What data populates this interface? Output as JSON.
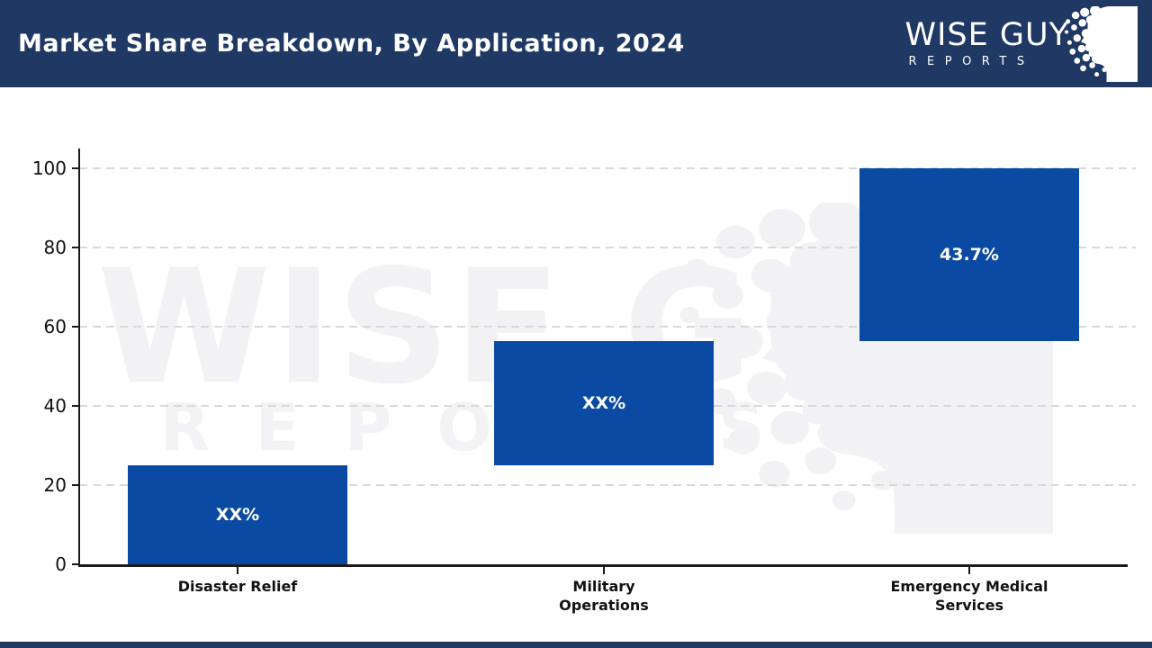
{
  "header": {
    "title": "Market Share Breakdown, By Application, 2024",
    "background_color": "#1f3864",
    "logo": {
      "name": "WISE GUY",
      "sub": "REPORTS",
      "face_icon": "dotted-head-profile-icon",
      "color": "#ffffff"
    }
  },
  "watermark": {
    "line1": "WISE GUY",
    "line2": "REPORTS",
    "color": "#f2f2f4"
  },
  "chart_data": {
    "type": "bar",
    "subtype": "waterfall",
    "title": "Market Share Breakdown, By Application, 2024",
    "xlabel": "",
    "ylabel": "",
    "categories": [
      "Disaster Relief",
      "Military Operations",
      "Emergency Medical Services"
    ],
    "category_display_lines": [
      [
        "Disaster Relief"
      ],
      [
        "Military",
        "Operations"
      ],
      [
        "Emergency Medical",
        "Services"
      ]
    ],
    "segments": [
      {
        "from": 0,
        "to": 25,
        "value_label": "XX%"
      },
      {
        "from": 25,
        "to": 56.3,
        "value_label": "XX%"
      },
      {
        "from": 56.3,
        "to": 100,
        "value_label": "43.7%"
      }
    ],
    "yticks": [
      0,
      20,
      40,
      60,
      80,
      100
    ],
    "ylim": [
      0,
      105
    ],
    "bar_color": "#0b4aa2",
    "bar_label_color": "#ffffff",
    "grid": "horizontal-dashed",
    "gridline_color": "#d9d9d9",
    "axis_color": "#1a1a1a",
    "legend": "none"
  },
  "footer": {
    "bar_color": "#1f3864"
  }
}
